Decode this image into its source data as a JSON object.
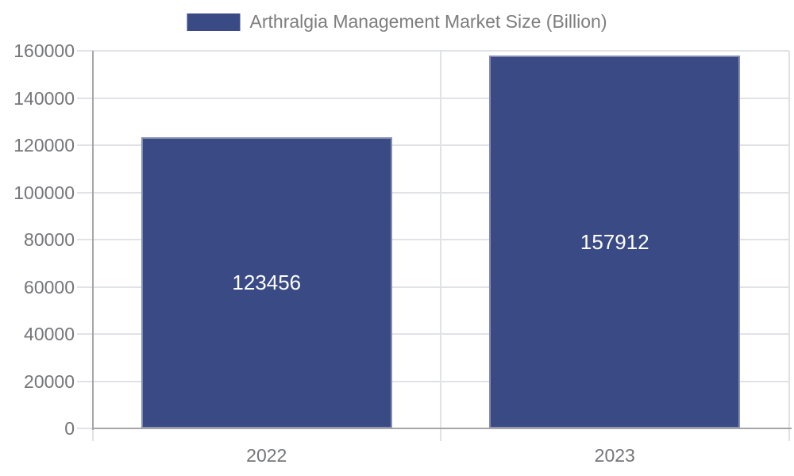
{
  "legend": {
    "label": "Arthralgia Management Market Size (Billion)",
    "swatch_color": "#3a4a84",
    "text_color": "#7d7d7d"
  },
  "chart_data": {
    "type": "bar",
    "title": "",
    "xlabel": "",
    "ylabel": "",
    "categories": [
      "2022",
      "2023"
    ],
    "series": [
      {
        "name": "Arthralgia Management Market Size (Billion)",
        "values": [
          123456,
          157912
        ],
        "color": "#3a4a84"
      }
    ],
    "value_labels": [
      "123456",
      "157912"
    ],
    "value_label_color": "#ffffff",
    "ylim": [
      0,
      160000
    ],
    "yticks": [
      0,
      20000,
      40000,
      60000,
      80000,
      100000,
      120000,
      140000,
      160000
    ],
    "ytick_labels": [
      "0",
      "20000",
      "40000",
      "60000",
      "80000",
      "100000",
      "120000",
      "140000",
      "160000"
    ],
    "grid": true,
    "legend_position": "top-center",
    "grid_color": "#e1e2e6",
    "axis_color": "#a6a6a6",
    "tick_label_color": "#747578"
  }
}
